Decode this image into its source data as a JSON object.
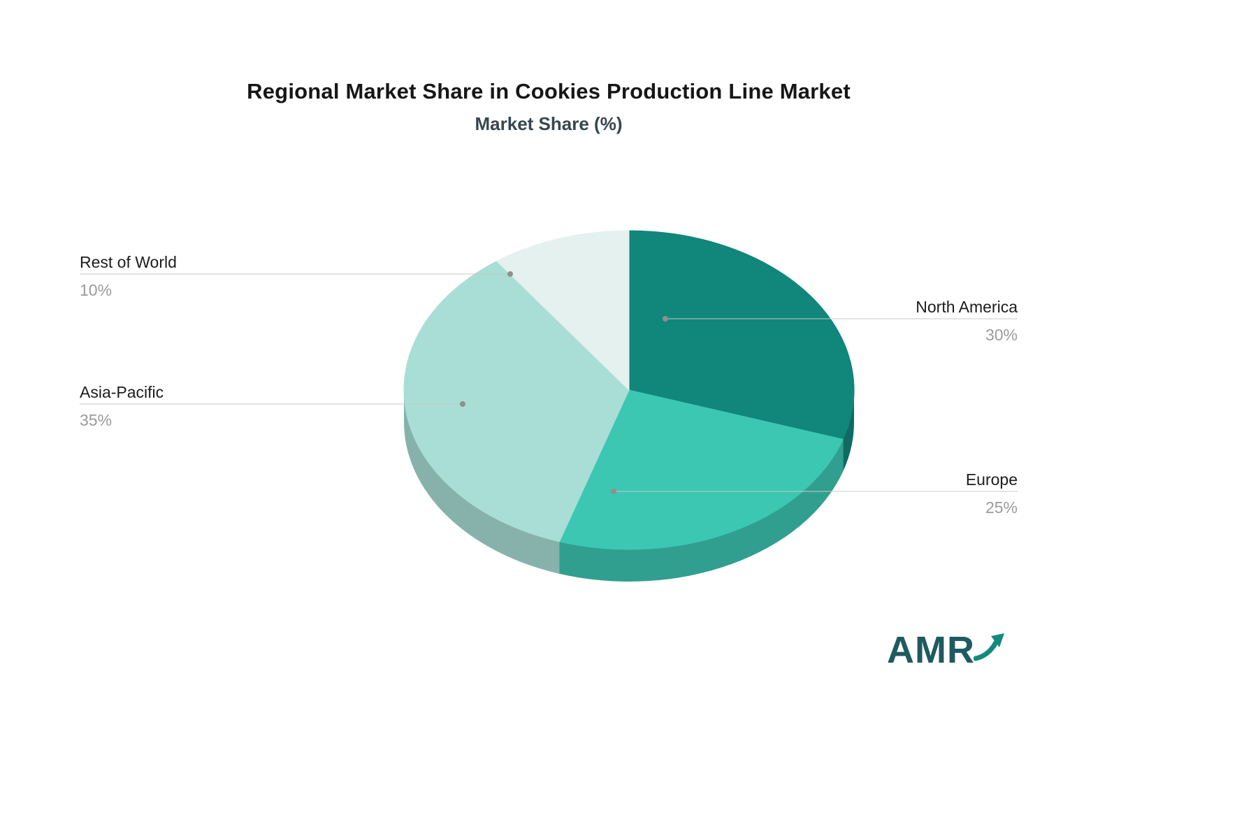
{
  "page": {
    "background": "#ffffff"
  },
  "chart_data": {
    "type": "pie",
    "title": "Regional Market Share in Cookies Production Line Market",
    "subtitle": "Market Share (%)",
    "unit": "%",
    "categories": [
      "North America",
      "Europe",
      "Asia-Pacific",
      "Rest of World"
    ],
    "values": [
      30,
      25,
      35,
      10
    ],
    "slices": [
      {
        "label": "North America",
        "value": 30,
        "display": "30%",
        "color": "#11867b"
      },
      {
        "label": "Europe",
        "value": 25,
        "display": "25%",
        "color": "#3cc7b3"
      },
      {
        "label": "Asia-Pacific",
        "value": 35,
        "display": "35%",
        "color": "#a9ded6"
      },
      {
        "label": "Rest of World",
        "value": 10,
        "display": "10%",
        "color": "#e4f1ee"
      }
    ],
    "start_angle_deg": 0,
    "direction": "clockwise",
    "style": "3d",
    "legend_position": "none",
    "label_format": "category name and percent on callout leader lines"
  },
  "colors": {
    "label": "#1c1c1c",
    "value": "#9b9b9b",
    "leader_line": "#c8c8c8",
    "leader_dot": "#8f8f8f",
    "background": "#ffffff"
  },
  "logo": {
    "text": "AMR",
    "text_color": "#1f5a60",
    "arrow_color": "#128a7d"
  }
}
